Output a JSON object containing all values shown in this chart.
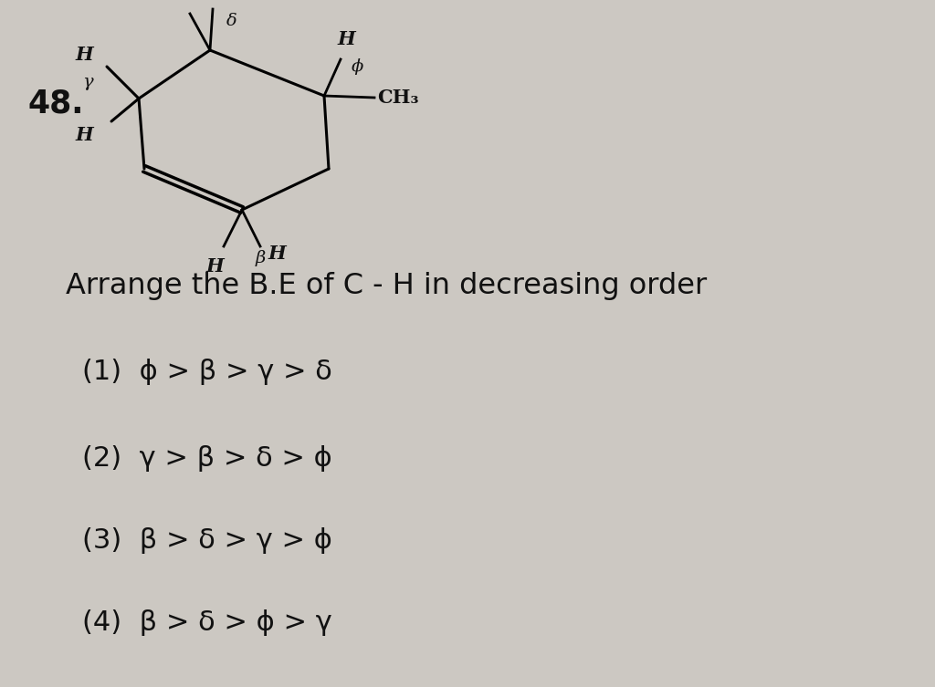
{
  "background_color": "#ccc8c2",
  "question_number": "48.",
  "question_text": "Arrange the B.E of C - H in decreasing order",
  "options": [
    "(1)  ϕ > β > γ > δ",
    "(2)  γ > β > δ > ϕ",
    "(3)  β > δ > γ > ϕ",
    "(4)  β > δ > ϕ > γ"
  ],
  "text_color": "#111111",
  "fontsize_question": 23,
  "fontsize_options": 22,
  "fontsize_number": 23,
  "mol_fontsize": 14
}
